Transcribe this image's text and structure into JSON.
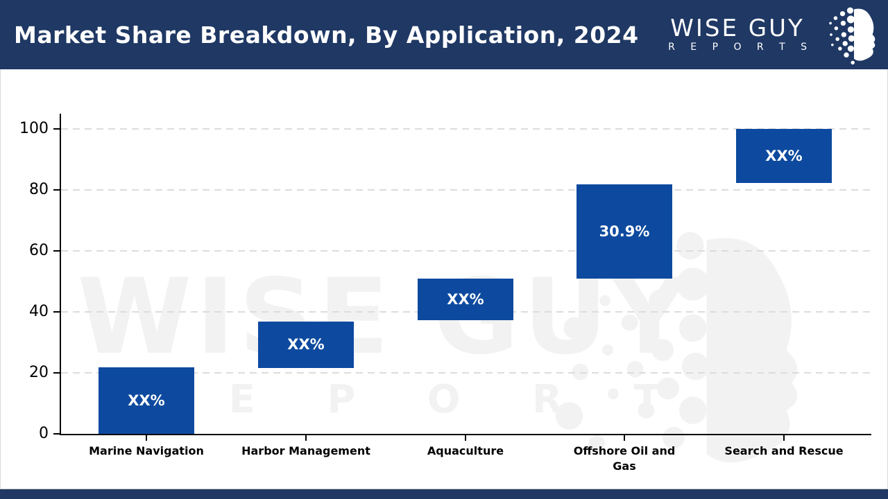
{
  "header": {
    "title": "Market Share Breakdown, By Application, 2024",
    "logo": {
      "line1": "WISE GUY",
      "line2": "R E P O R T S"
    }
  },
  "watermark": {
    "line1": "WISE GUY",
    "line2": "R E P O R T S"
  },
  "colors": {
    "header_bg": "#1f3864",
    "footer_bg": "#1f3864",
    "bar": "#0d4a9f",
    "bar_label": "#ffffff",
    "grid": "#dcdcdc",
    "axis": "#000000",
    "watermark": "#f2f2f2"
  },
  "chart_data": {
    "type": "bar",
    "subtype": "floating-waterfall",
    "title": "Market Share Breakdown, By Application, 2024",
    "categories": [
      "Marine Navigation",
      "Harbor Management",
      "Aquaculture",
      "Offshore Oil and Gas",
      "Search and Rescue"
    ],
    "tick_labels": [
      "Marine Navigation",
      "Harbor Management",
      "Aquaculture",
      "Offshore Oil and\nGas",
      "Search and Rescue"
    ],
    "segments": [
      {
        "category": "Marine Navigation",
        "start": 0,
        "end": 21.8,
        "value_label": "XX%"
      },
      {
        "category": "Harbor Management",
        "start": 21.7,
        "end": 36.8,
        "value_label": "XX%"
      },
      {
        "category": "Aquaculture",
        "start": 37.3,
        "end": 50.8,
        "value_label": "XX%"
      },
      {
        "category": "Offshore Oil and Gas",
        "start": 51.0,
        "end": 81.9,
        "value_label": "30.9%"
      },
      {
        "category": "Search and Rescue",
        "start": 82.2,
        "end": 100.0,
        "value_label": "XX%"
      }
    ],
    "values": [
      21.8,
      15.1,
      13.5,
      30.9,
      17.8
    ],
    "y_ticks": [
      0,
      20,
      40,
      60,
      80,
      100
    ],
    "ylim": [
      0,
      105
    ],
    "xlabel": "",
    "ylabel": "",
    "grid": "horizontal dashed",
    "legend": "none"
  }
}
